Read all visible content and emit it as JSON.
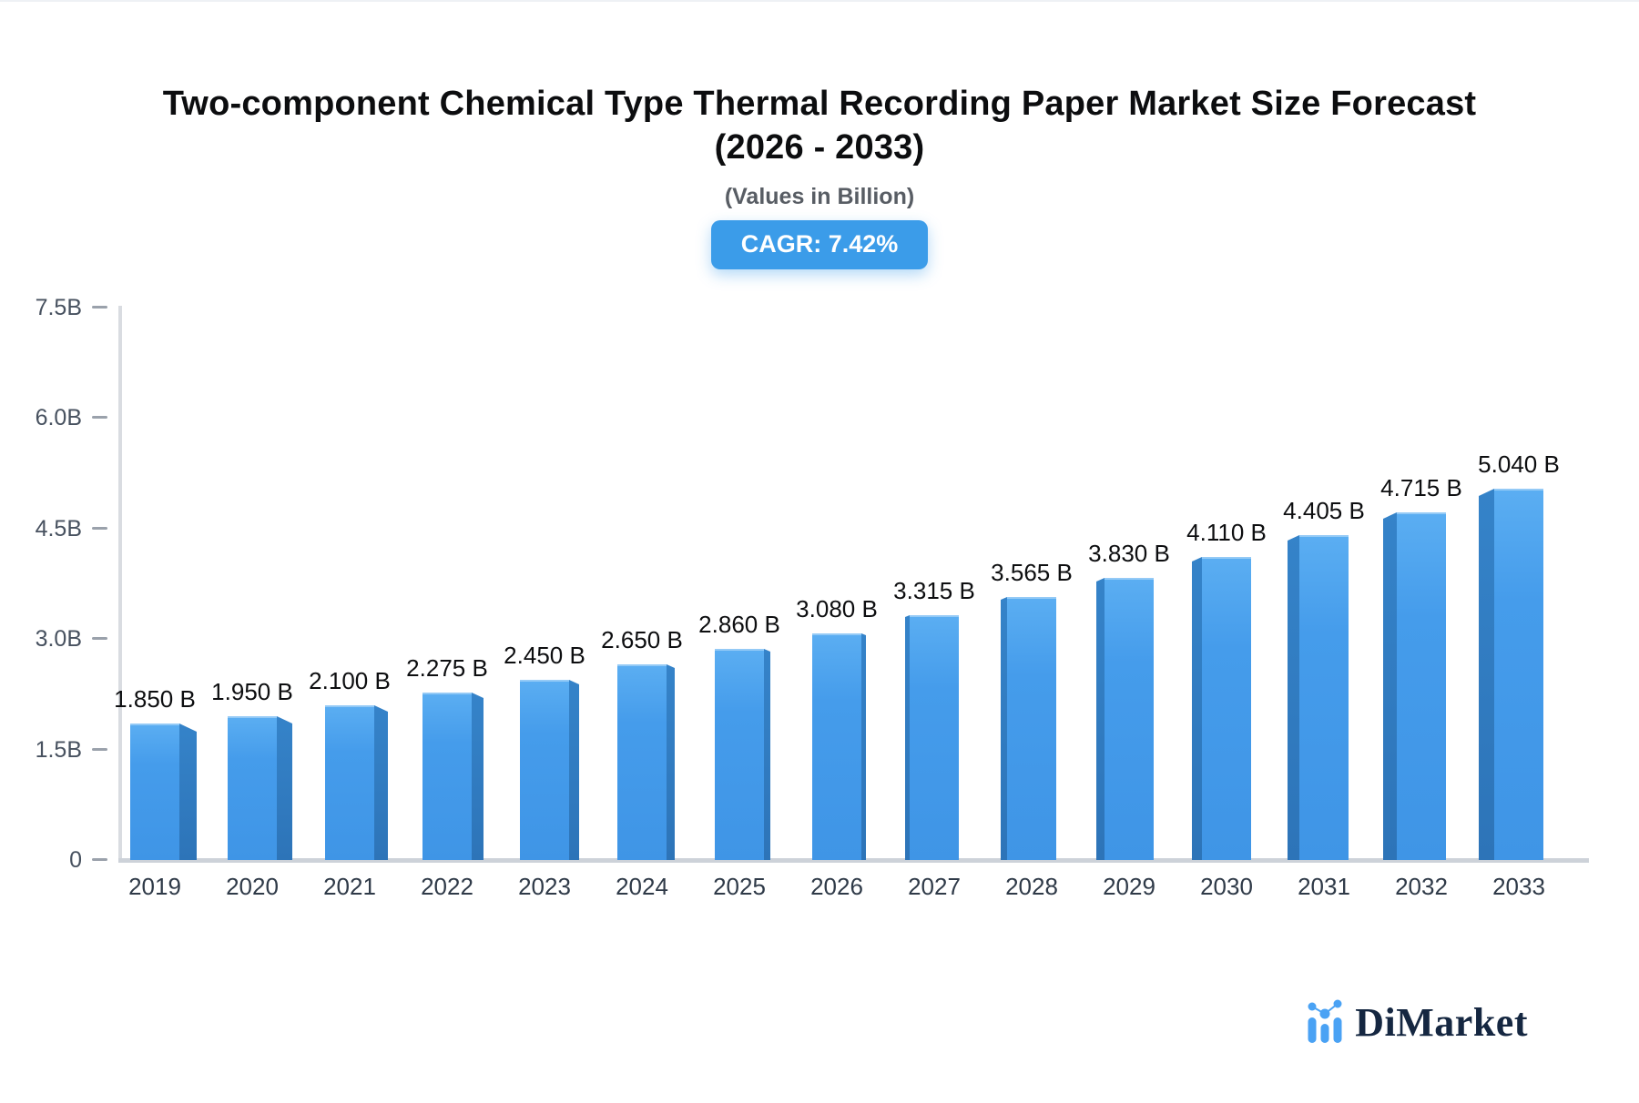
{
  "title": {
    "line1": "Two-component Chemical Type Thermal Recording Paper Market Size Forecast",
    "line2": "(2026 - 2033)"
  },
  "subtitle": "(Values in Billion)",
  "badge": {
    "label": "CAGR: 7.42%",
    "bg_color": "#3b9ce9"
  },
  "chart_data": {
    "type": "bar",
    "title": "Two-component Chemical Type Thermal Recording Paper Market Size Forecast (2026 - 2033)",
    "values_unit": "Billion",
    "categories": [
      "2019",
      "2020",
      "2021",
      "2022",
      "2023",
      "2024",
      "2025",
      "2026",
      "2027",
      "2028",
      "2029",
      "2030",
      "2031",
      "2032",
      "2033"
    ],
    "values": [
      1.85,
      1.95,
      2.1,
      2.275,
      2.45,
      2.65,
      2.86,
      3.08,
      3.315,
      3.565,
      3.83,
      4.11,
      4.405,
      4.715,
      5.04
    ],
    "bar_labels": [
      "1.850 B",
      "1.950 B",
      "2.100 B",
      "2.275 B",
      "2.450 B",
      "2.650 B",
      "2.860 B",
      "3.080 B",
      "3.315 B",
      "3.565 B",
      "3.830 B",
      "4.110 B",
      "4.405 B",
      "4.715 B",
      "5.040 B"
    ],
    "xlabel": "",
    "ylabel": "",
    "ylim": [
      0,
      7.5
    ],
    "y_ticks": [
      {
        "value": 7.5,
        "label": "7.5B"
      },
      {
        "value": 6.0,
        "label": "6.0B"
      },
      {
        "value": 4.5,
        "label": "4.5B"
      },
      {
        "value": 3.0,
        "label": "3.0B"
      },
      {
        "value": 1.5,
        "label": "1.5B"
      },
      {
        "value": 0,
        "label": "0"
      }
    ],
    "grid": false,
    "legend": "none",
    "bar_style_3d": true,
    "bar_front_color": "#459ceb",
    "bar_side_color": "#2d74b8",
    "axis_line_color": "#cdd2d9",
    "tick_text_color": "#47515f",
    "value_label_color": "#0d0e10"
  },
  "logo": {
    "icon": "dimarket-logo-icon",
    "icon_color": "#4aa2f4",
    "text": "DiMarket",
    "text_color": "#152741"
  }
}
